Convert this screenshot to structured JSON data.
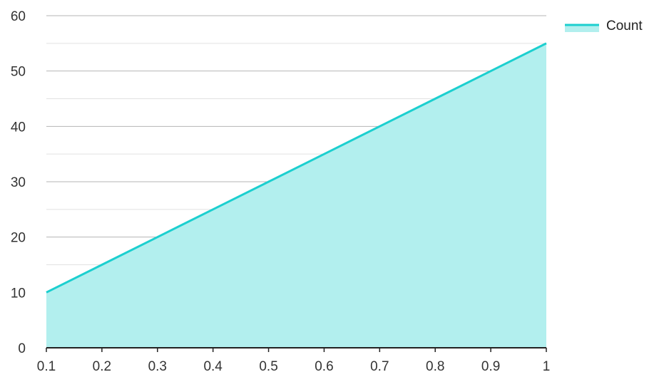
{
  "chart_data": {
    "type": "area",
    "title": "",
    "xlabel": "",
    "ylabel": "",
    "x": [
      0.1,
      0.2,
      0.3,
      0.4,
      0.5,
      0.6,
      0.7,
      0.8,
      0.9,
      1.0
    ],
    "series": [
      {
        "name": "Count",
        "values": [
          10,
          15,
          20,
          25,
          30,
          35,
          40,
          45,
          50,
          55
        ],
        "line_color": "#1ccfcf",
        "fill_color": "#b2efee"
      }
    ],
    "x_tick_labels": [
      "0.1",
      "0.2",
      "0.3",
      "0.4",
      "0.5",
      "0.6",
      "0.7",
      "0.8",
      "0.9",
      "1"
    ],
    "y_tick_labels": [
      "0",
      "10",
      "20",
      "30",
      "40",
      "50",
      "60"
    ],
    "xlim": [
      0.1,
      1.0
    ],
    "ylim": [
      0,
      60
    ],
    "y_major_step": 10,
    "y_minor_step": 5,
    "grid": true,
    "legend_position": "top-right"
  },
  "colors": {
    "grid_major": "#b4b4b4",
    "grid_minor": "#e2e2e2",
    "axis": "#222222",
    "text": "#333333"
  }
}
